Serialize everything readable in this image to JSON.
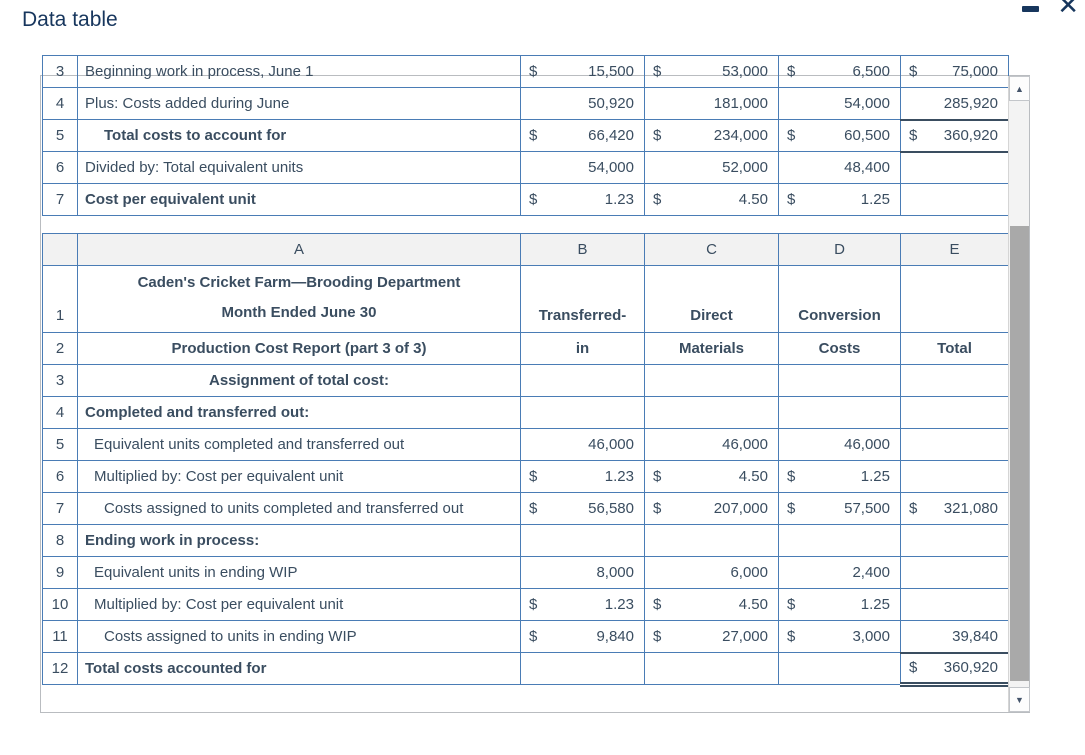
{
  "window": {
    "title": "Data table",
    "close_glyph": "✕"
  },
  "scrollbar": {
    "up_arrow": "▲",
    "down_arrow": "▼"
  },
  "colors": {
    "accent_border": "#4a7cb5",
    "text": "#3a4d60",
    "title": "#17365d",
    "header_bg": "#f2f2f2"
  },
  "top_table": {
    "rows": [
      {
        "num": "3",
        "label": "Beginning work in process, June 1",
        "cells": [
          {
            "d": "$",
            "v": "15,500"
          },
          {
            "d": "$",
            "v": "53,000"
          },
          {
            "d": "$",
            "v": "6,500"
          },
          {
            "d": "$",
            "v": "75,000"
          }
        ]
      },
      {
        "num": "4",
        "label": "Plus: Costs added during June",
        "cells": [
          {
            "v": "50,920"
          },
          {
            "v": "181,000"
          },
          {
            "v": "54,000"
          },
          {
            "v": "285,920",
            "cls": "ru1"
          }
        ]
      },
      {
        "num": "5",
        "label": "Total costs to account for",
        "bold": true,
        "indent": 2,
        "cells": [
          {
            "d": "$",
            "v": "66,420"
          },
          {
            "d": "$",
            "v": "234,000"
          },
          {
            "d": "$",
            "v": "60,500"
          },
          {
            "d": "$",
            "v": "360,920",
            "cls": "ru1"
          }
        ]
      },
      {
        "num": "6",
        "label": "Divided by: Total equivalent units",
        "cells": [
          {
            "v": "54,000"
          },
          {
            "v": "52,000"
          },
          {
            "v": "48,400"
          },
          {}
        ]
      },
      {
        "num": "7",
        "label": "Cost per equivalent unit",
        "bold": true,
        "cells": [
          {
            "d": "$",
            "v": "1.23"
          },
          {
            "d": "$",
            "v": "4.50"
          },
          {
            "d": "$",
            "v": "1.25"
          },
          {}
        ]
      }
    ]
  },
  "bottom_table": {
    "col_headers": [
      "A",
      "B",
      "C",
      "D",
      "E"
    ],
    "rows": [
      {
        "num": "1",
        "lines": [
          "Caden's Cricket Farm—Brooding Department",
          "Month Ended June 30"
        ],
        "bold": true,
        "center": true,
        "tall": true,
        "cells": [
          {
            "v": "Transferred-",
            "center": true,
            "cls": "b"
          },
          {
            "v": "Direct",
            "center": true,
            "cls": "b"
          },
          {
            "v": "Conversion",
            "center": true,
            "cls": "b"
          },
          {}
        ]
      },
      {
        "num": "2",
        "label": "Production Cost Report (part 3 of 3)",
        "bold": true,
        "center": true,
        "cells": [
          {
            "v": "in",
            "center": true,
            "cls": "b"
          },
          {
            "v": "Materials",
            "center": true,
            "cls": "b"
          },
          {
            "v": "Costs",
            "center": true,
            "cls": "b"
          },
          {
            "v": "Total",
            "center": true,
            "cls": "b"
          }
        ]
      },
      {
        "num": "3",
        "label": "Assignment of total cost:",
        "bold": true,
        "center": true,
        "cells": [
          {},
          {},
          {},
          {}
        ]
      },
      {
        "num": "4",
        "label": "Completed and transferred out:",
        "bold": true,
        "cells": [
          {},
          {},
          {},
          {}
        ]
      },
      {
        "num": "5",
        "label": "Equivalent units completed and transferred out",
        "indent": 1,
        "cells": [
          {
            "v": "46,000"
          },
          {
            "v": "46,000"
          },
          {
            "v": "46,000"
          },
          {}
        ]
      },
      {
        "num": "6",
        "label": "Multiplied by: Cost per equivalent unit",
        "indent": 1,
        "cells": [
          {
            "d": "$",
            "v": "1.23"
          },
          {
            "d": "$",
            "v": "4.50"
          },
          {
            "d": "$",
            "v": "1.25"
          },
          {}
        ]
      },
      {
        "num": "7",
        "label": "Costs assigned to units completed and transferred out",
        "indent": 2,
        "cells": [
          {
            "d": "$",
            "v": "56,580"
          },
          {
            "d": "$",
            "v": "207,000"
          },
          {
            "d": "$",
            "v": "57,500"
          },
          {
            "d": "$",
            "v": "321,080"
          }
        ]
      },
      {
        "num": "8",
        "label": "Ending work in process:",
        "bold": true,
        "cells": [
          {},
          {},
          {},
          {}
        ]
      },
      {
        "num": "9",
        "label": "Equivalent units in ending WIP",
        "indent": 1,
        "cells": [
          {
            "v": "8,000"
          },
          {
            "v": "6,000"
          },
          {
            "v": "2,400"
          },
          {}
        ]
      },
      {
        "num": "10",
        "label": "Multiplied by: Cost per equivalent unit",
        "indent": 1,
        "cells": [
          {
            "d": "$",
            "v": "1.23"
          },
          {
            "d": "$",
            "v": "4.50"
          },
          {
            "d": "$",
            "v": "1.25"
          },
          {}
        ]
      },
      {
        "num": "11",
        "label": "Costs assigned to units in ending WIP",
        "indent": 2,
        "cells": [
          {
            "d": "$",
            "v": "9,840"
          },
          {
            "d": "$",
            "v": "27,000"
          },
          {
            "d": "$",
            "v": "3,000"
          },
          {
            "v": "39,840",
            "cls": "ru1"
          }
        ]
      },
      {
        "num": "12",
        "label": "Total costs accounted for",
        "bold": true,
        "cells": [
          {},
          {},
          {},
          {
            "d": "$",
            "v": "360,920",
            "cls": "ru2"
          }
        ]
      }
    ]
  }
}
